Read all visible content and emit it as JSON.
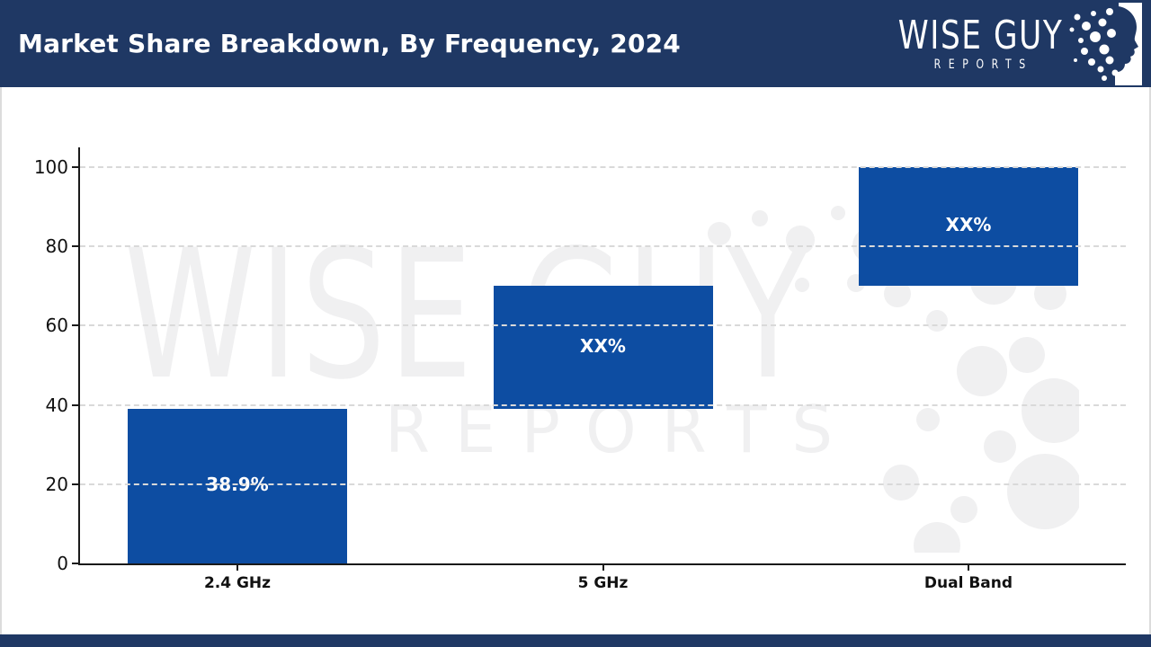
{
  "header": {
    "bg_color": "#1f3864",
    "title": "Market Share Breakdown, By Frequency, 2024",
    "logo": {
      "line1": "WISE GUY",
      "line2": "REPORTS"
    }
  },
  "footer": {
    "bg_color": "#1f3864"
  },
  "watermark": {
    "line1": "WISE GUY",
    "line2": "REPORTS"
  },
  "chart_data": {
    "type": "bar",
    "variant": "waterfall",
    "title": "Market Share Breakdown, By Frequency, 2024",
    "categories": [
      "2.4 GHz",
      "5 GHz",
      "Dual Band"
    ],
    "segments": [
      {
        "category": "2.4 GHz",
        "start": 0,
        "end": 38.9,
        "label": "38.9%"
      },
      {
        "category": "5 GHz",
        "start": 38.9,
        "end": 70,
        "label": "XX%"
      },
      {
        "category": "Dual Band",
        "start": 70,
        "end": 100,
        "label": "XX%"
      }
    ],
    "xlabel": "",
    "ylabel": "",
    "ylim": [
      0,
      105
    ],
    "yticks": [
      0,
      20,
      40,
      60,
      80,
      100
    ],
    "grid": "horizontal-dashed-over-bars",
    "legend": "none",
    "bar_color": "#0d4da2",
    "bar_label_color": "#ffffff",
    "axis_color": "#1a1a1a",
    "grid_color": "#d9d9d9"
  }
}
